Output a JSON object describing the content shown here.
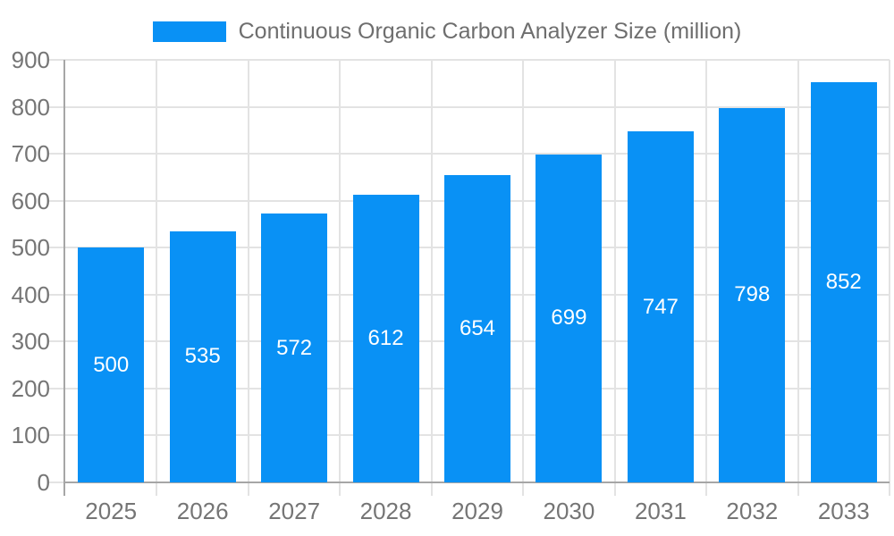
{
  "legend": {
    "label": "Continuous Organic Carbon Analyzer Size (million)"
  },
  "colors": {
    "bar": "#0991f5",
    "grid": "#e3e3e3",
    "axis": "#a6a6a6",
    "axis_text": "#757575",
    "legend_text": "#6e6e6e",
    "value_label": "#ffffff",
    "background": "#ffffff"
  },
  "chart_data": {
    "type": "bar",
    "title": "Continuous Organic Carbon Analyzer Size (million)",
    "categories": [
      "2025",
      "2026",
      "2027",
      "2028",
      "2029",
      "2030",
      "2031",
      "2032",
      "2033"
    ],
    "values": [
      500,
      535,
      572,
      612,
      654,
      699,
      747,
      798,
      852
    ],
    "xlabel": "",
    "ylabel": "",
    "ylim": [
      0,
      900
    ],
    "ytick_step": 100,
    "yticks": [
      0,
      100,
      200,
      300,
      400,
      500,
      600,
      700,
      800,
      900
    ],
    "grid": true,
    "legend_position": "top",
    "value_label_position": "inside-center"
  }
}
